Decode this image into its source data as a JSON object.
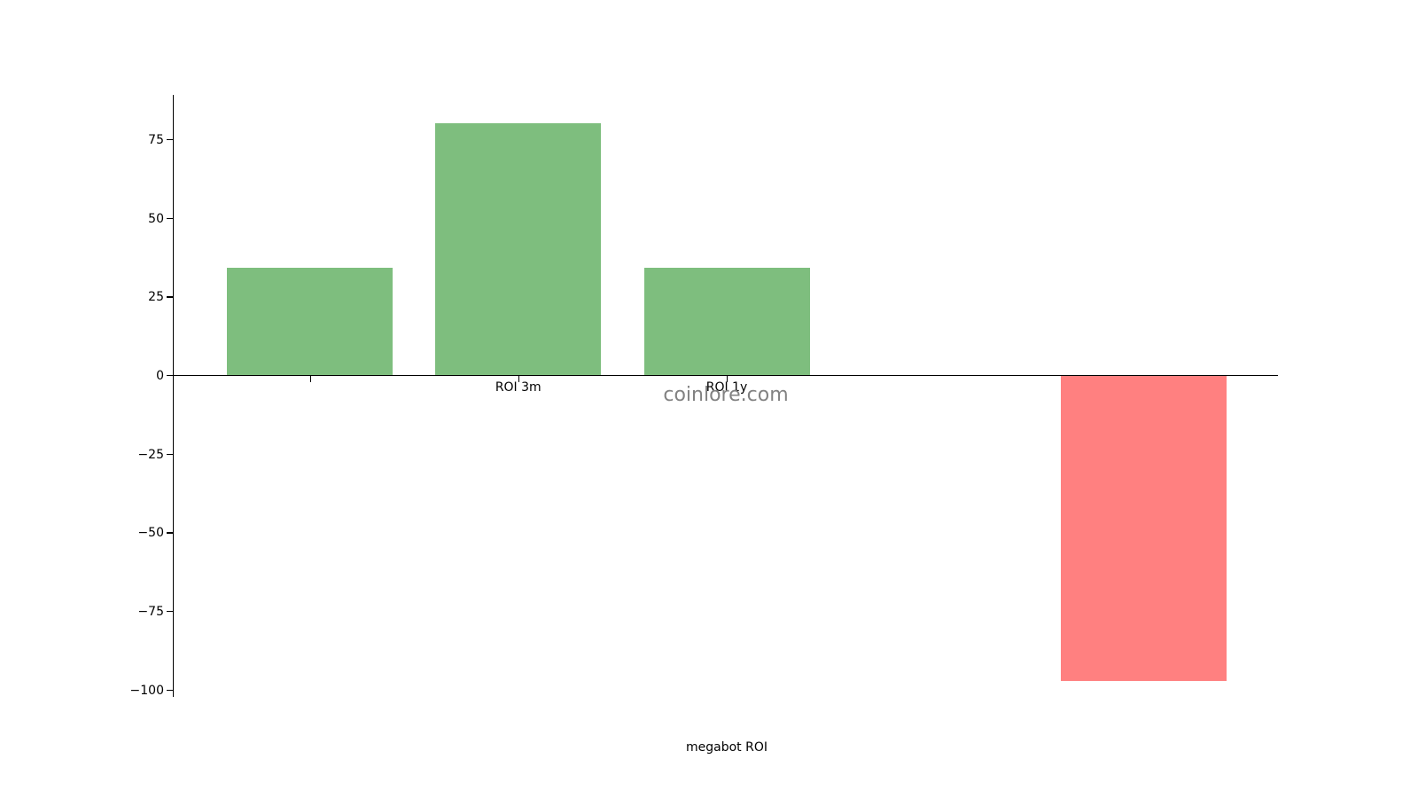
{
  "chart_data": {
    "type": "bar",
    "title": "",
    "xlabel": "megabot ROI",
    "ylabel": "",
    "watermark": "coinlore.com",
    "grid": false,
    "legend": null,
    "ylim": [
      -102,
      89
    ],
    "yticks": [
      75,
      50,
      25,
      0,
      -25,
      -50,
      -75,
      -100
    ],
    "ytick_labels": [
      "75",
      "50",
      "25",
      "0",
      "−25",
      "−50",
      "−75",
      "−100"
    ],
    "categories": [
      "",
      "ROI 3m",
      "ROI 1y",
      ""
    ],
    "x_positions": [
      0,
      1,
      2,
      4
    ],
    "values": [
      34,
      80,
      34,
      -97
    ],
    "bar_colors": [
      "#7ebe7e",
      "#7ebe7e",
      "#7ebe7e",
      "#ff8080"
    ],
    "xtick_positions": [
      0,
      1,
      2
    ],
    "xtick_labels": [
      "",
      "ROI 3m",
      "ROI 1y"
    ],
    "colors": {
      "positive_bar": "#7ebe7e",
      "negative_bar": "#ff8080",
      "axis": "#000000",
      "tick_text": "#000000",
      "watermark_text": "#828282"
    }
  }
}
